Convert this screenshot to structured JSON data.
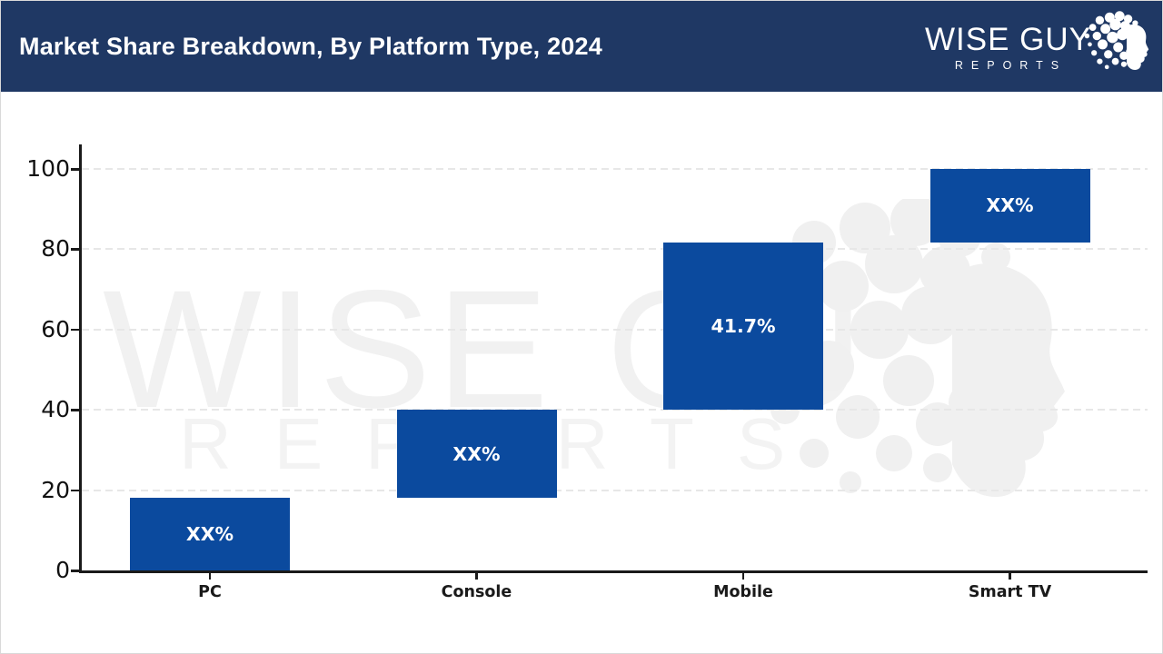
{
  "header": {
    "title": "Market Share Breakdown, By Platform Type, 2024",
    "bg_color": "#1f3864",
    "text_color": "#ffffff",
    "brand": {
      "line1": "WISE GUY",
      "line2": "REPORTS",
      "head_icon": "dotted-head-profile"
    }
  },
  "watermark": {
    "line1": "WISE GU",
    "line2": "REPORTS",
    "head_icon": "dotted-head-profile",
    "color": "#f1f1f1"
  },
  "chart_data": {
    "type": "bar",
    "subtype": "floating-segment-waterfall",
    "title": "Market Share Breakdown, By Platform Type, 2024",
    "categories": [
      "PC",
      "Console",
      "Mobile",
      "Smart TV"
    ],
    "series": [
      {
        "name": "Market share (%)",
        "bars": [
          {
            "category": "PC",
            "start": 0,
            "end": 18,
            "value": 18,
            "label": "XX%"
          },
          {
            "category": "Console",
            "start": 18,
            "end": 40,
            "value": 22,
            "label": "XX%"
          },
          {
            "category": "Mobile",
            "start": 40,
            "end": 81.7,
            "value": 41.7,
            "label": "41.7%"
          },
          {
            "category": "Smart TV",
            "start": 81.7,
            "end": 100,
            "value": 18.3,
            "label": "XX%"
          }
        ]
      }
    ],
    "xlabel": "",
    "ylabel": "",
    "ylim": [
      0,
      106
    ],
    "yticks": [
      0,
      20,
      40,
      60,
      80,
      100
    ],
    "grid": "horizontal-dashed",
    "legend": "none",
    "bar_color": "#0b4a9e",
    "bar_label_color": "#ffffff",
    "axis_color": "#1a1a1a",
    "grid_color": "#e7e7e7"
  }
}
